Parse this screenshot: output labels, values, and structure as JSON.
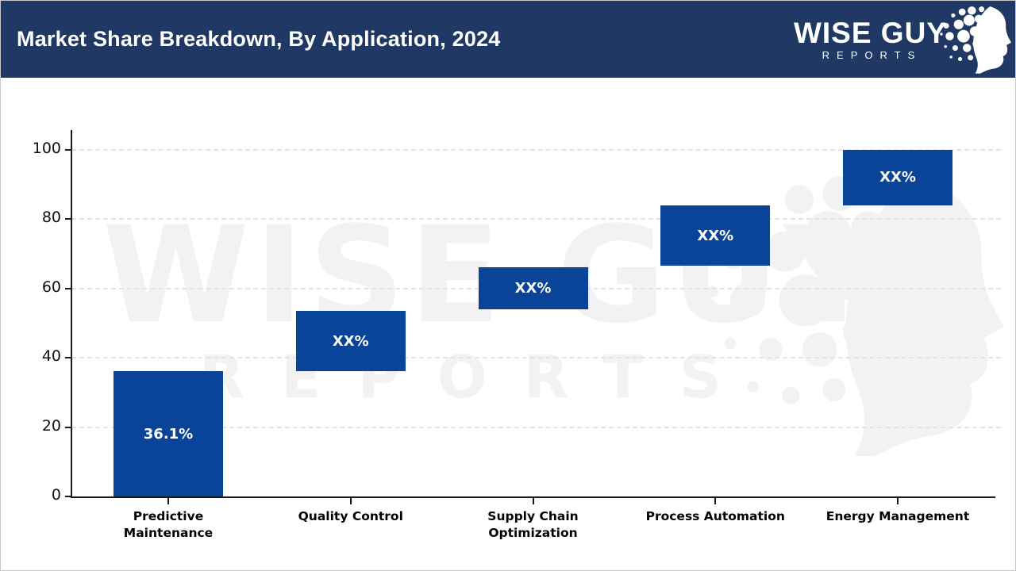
{
  "header": {
    "title": "Market Share Breakdown, By Application, 2024",
    "brand": {
      "name": "WISE GUY",
      "subtitle": "REPORTS"
    }
  },
  "watermark": {
    "line1": "WISE GUY",
    "line2": "REPORTS"
  },
  "colors": {
    "header_bg": "#1f3864",
    "header_text": "#ffffff",
    "bar": "#0a4499",
    "bar_label": "#ffffff",
    "axis": "#1a1a1a",
    "grid": "#e4e4e6",
    "watermark": "#f2f2f4"
  },
  "chart_data": {
    "type": "bar",
    "subtype": "waterfall",
    "title": "Market Share Breakdown, By Application, 2024",
    "xlabel": "",
    "ylabel": "",
    "grid": true,
    "legend": false,
    "ylim": [
      0,
      105.7
    ],
    "yticks": [
      0,
      20,
      40,
      60,
      80,
      100
    ],
    "categories": [
      "Predictive Maintenance",
      "Quality Control",
      "Supply Chain Optimization",
      "Process Automation",
      "Energy Management"
    ],
    "category_label_lines": [
      [
        "Predictive",
        "Maintenance"
      ],
      [
        "Quality Control"
      ],
      [
        "Supply Chain",
        "Optimization"
      ],
      [
        "Process Automation"
      ],
      [
        "Energy Management"
      ]
    ],
    "segments": [
      {
        "category": "Predictive Maintenance",
        "start": 0,
        "end": 36.1,
        "label": "36.1%"
      },
      {
        "category": "Quality Control",
        "start": 36.1,
        "end": 53.5,
        "label": "XX%"
      },
      {
        "category": "Supply Chain Optimization",
        "start": 53.9,
        "end": 66.1,
        "label": "XX%"
      },
      {
        "category": "Process Automation",
        "start": 66.5,
        "end": 83.9,
        "label": "XX%"
      },
      {
        "category": "Energy Management",
        "start": 83.9,
        "end": 100,
        "label": "XX%"
      }
    ]
  }
}
